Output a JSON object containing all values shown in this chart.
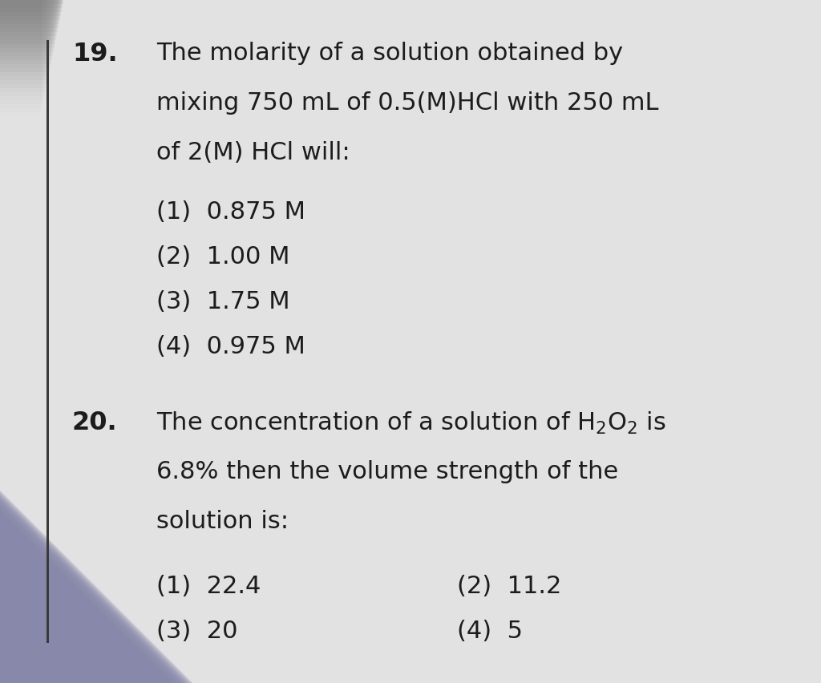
{
  "bg_color": "#d8d8d8",
  "page_color": "#e2e2e2",
  "shadow_color": "#b0b0b8",
  "left_line_color": "#3a3a3a",
  "text_color": "#1c1c1c",
  "q19_number": "19.",
  "q19_line1": "The molarity of a solution obtained by",
  "q19_line2": "mixing 750 mL of 0.5(M)HCl with 250 mL",
  "q19_line3": "of 2(M) HCl will:",
  "q19_opt1": "(1)  0.875 M",
  "q19_opt2": "(2)  1.00 M",
  "q19_opt3": "(3)  1.75 M",
  "q19_opt4": "(4)  0.975 M",
  "q20_number": "20.",
  "q20_line2": "6.8% then the volume strength of the",
  "q20_line3": "solution is:",
  "q20_opt1": "(1)  22.4",
  "q20_opt2": "(2)  11.2",
  "q20_opt3": "(3)  20",
  "q20_opt4": "(4)  5",
  "font_size": 22,
  "font_size_num": 23
}
